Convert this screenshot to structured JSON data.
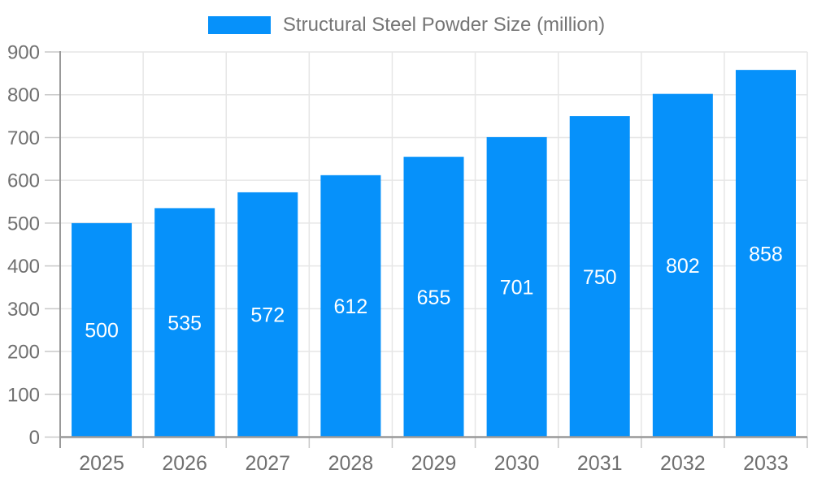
{
  "legend": {
    "label": "Structural Steel Powder Size (million)"
  },
  "colors": {
    "bar": "#0691FA",
    "axis_line": "#999999",
    "grid_line": "#e6e6e6",
    "tick_line": "#c9c9c9",
    "tick_label": "#707070",
    "legend_text": "#757575",
    "value_label": "#ffffff",
    "background": "#ffffff"
  },
  "chart_data": {
    "type": "bar",
    "title": "Structural Steel Powder Size (million)",
    "series_name": "Structural Steel Powder Size (million)",
    "categories": [
      "2025",
      "2026",
      "2027",
      "2028",
      "2029",
      "2030",
      "2031",
      "2032",
      "2033"
    ],
    "values": [
      500,
      535,
      572,
      612,
      655,
      701,
      750,
      802,
      858
    ],
    "xlabel": "",
    "ylabel": "",
    "ylim": [
      0,
      900
    ],
    "ytick_step": 100,
    "ytick_labels": [
      "0",
      "100",
      "200",
      "300",
      "400",
      "500",
      "600",
      "700",
      "800",
      "900"
    ],
    "grid": true,
    "legend_position": "top",
    "value_label_position": "inside-middle"
  }
}
